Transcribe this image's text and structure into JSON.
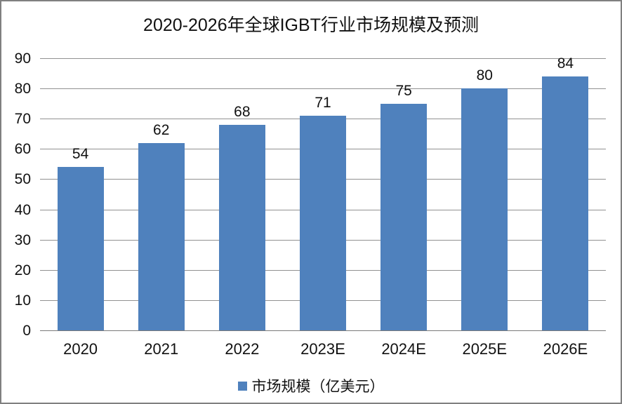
{
  "chart_data": {
    "type": "bar",
    "title": "2020-2026年全球IGBT行业市场规模及预测",
    "categories": [
      "2020",
      "2021",
      "2022",
      "2023E",
      "2024E",
      "2025E",
      "2026E"
    ],
    "values": [
      54,
      62,
      68,
      71,
      75,
      80,
      84
    ],
    "series_name": "市场规模（亿美元）",
    "legend": "市场规模（亿美元）",
    "legend_position": "bottom",
    "xlabel": "",
    "ylabel": "",
    "ylim": [
      0,
      90
    ],
    "y_ticks": [
      0,
      10,
      20,
      30,
      40,
      50,
      60,
      70,
      80,
      90
    ],
    "grid": true,
    "data_labels_shown": true
  },
  "colors": {
    "bar": "#4F81BD",
    "gridline": "#919191",
    "axis_line": "#7a7a7a",
    "text": "#111111",
    "frame_border": "#808080",
    "background": "#ffffff"
  }
}
